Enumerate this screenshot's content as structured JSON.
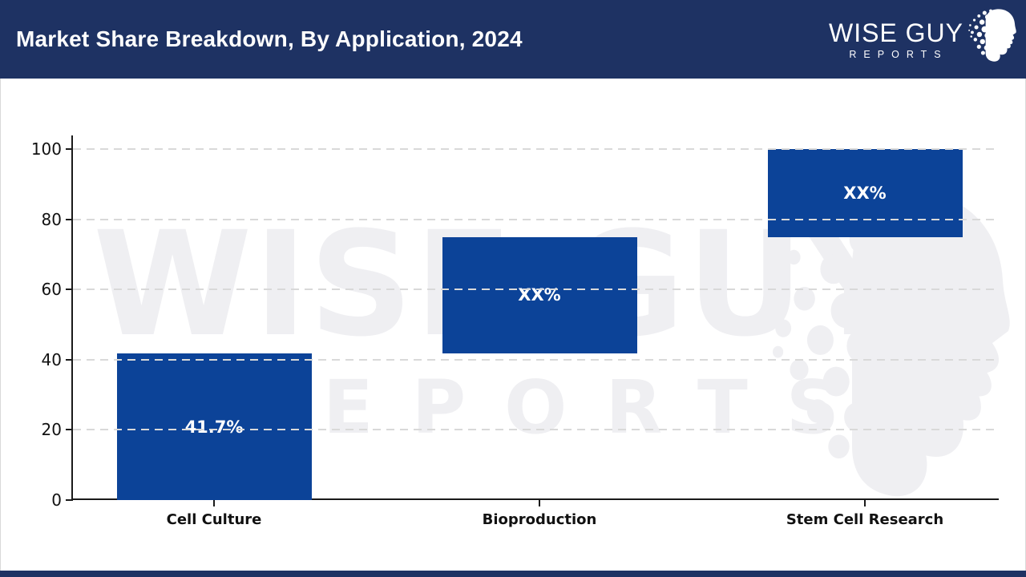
{
  "header": {
    "title": "Market Share Breakdown, By Application, 2024",
    "logo": {
      "line1": "WISE GUY",
      "line2": "REPORTS"
    }
  },
  "watermark": {
    "line1": "WISE GUY",
    "line2": "REPORTS"
  },
  "colors": {
    "header_bg": "#1e3263",
    "bar": "#0c4398",
    "grid": "#d9d9d9",
    "axis": "#1a1a1a",
    "value_label": "#ffffff",
    "watermark": "#efeff2"
  },
  "chart_data": {
    "type": "bar",
    "subtype": "stacked-waterfall-percent",
    "title": "Market Share Breakdown, By Application, 2024",
    "categories": [
      "Cell Culture",
      "Bioproduction",
      "Stem Cell Research"
    ],
    "segments": [
      {
        "category": "Cell Culture",
        "start": 0,
        "end": 41.7,
        "label": "41.7%"
      },
      {
        "category": "Bioproduction",
        "start": 41.7,
        "end": 75,
        "label": "XX%"
      },
      {
        "category": "Stem Cell Research",
        "start": 75,
        "end": 100,
        "label": "XX%"
      }
    ],
    "y_ticks": [
      0,
      20,
      40,
      60,
      80,
      100
    ],
    "ylim": [
      0,
      104
    ],
    "xlabel": "",
    "ylabel": "",
    "grid": "horizontal-dashed",
    "legend": "none"
  }
}
